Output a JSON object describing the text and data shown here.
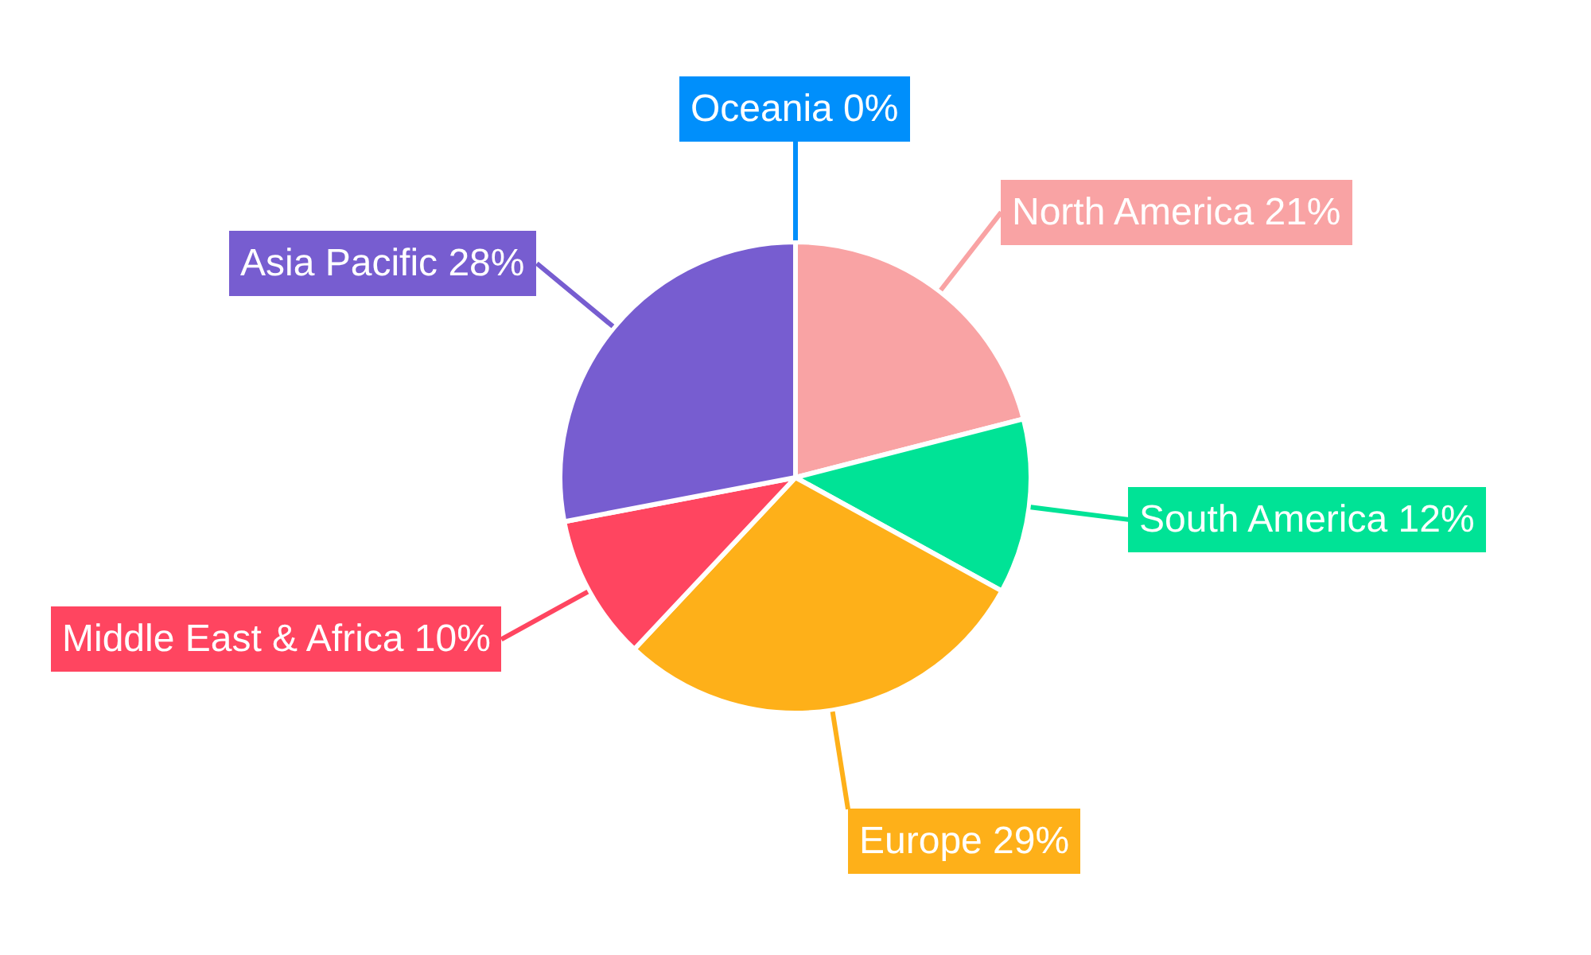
{
  "chart_data": {
    "type": "pie",
    "categories": [
      "North America",
      "South America",
      "Europe",
      "Middle East & Africa",
      "Asia Pacific",
      "Oceania"
    ],
    "values": [
      21,
      12,
      29,
      10,
      28,
      0
    ],
    "colors": [
      "#f9a3a4",
      "#00e396",
      "#feb019",
      "#ff4560",
      "#775dd0",
      "#008ffb"
    ],
    "value_labels": [
      "21%",
      "12%",
      "29%",
      "10%",
      "28%",
      "0%"
    ]
  }
}
